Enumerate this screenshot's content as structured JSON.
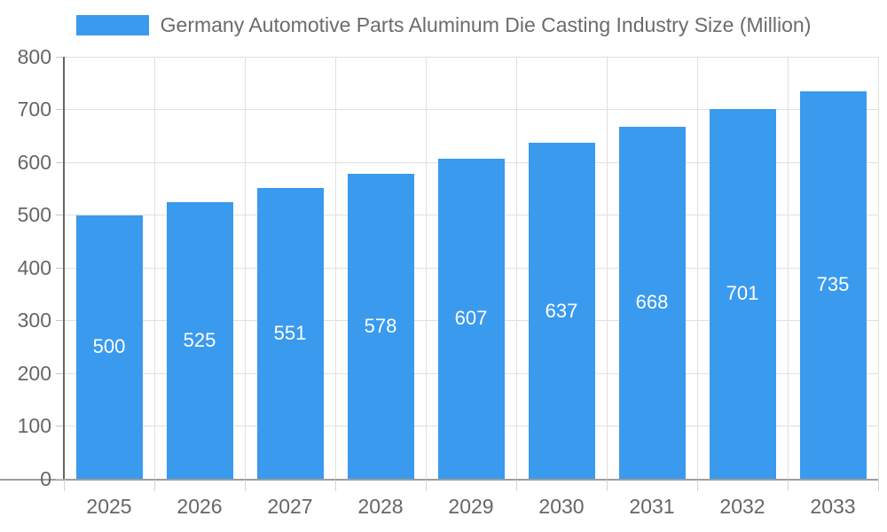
{
  "chart_data": {
    "type": "bar",
    "title": "Germany Automotive Parts Aluminum Die Casting Industry Size (Million)",
    "categories": [
      "2025",
      "2026",
      "2027",
      "2028",
      "2029",
      "2030",
      "2031",
      "2032",
      "2033"
    ],
    "values": [
      500,
      525,
      551,
      578,
      607,
      637,
      668,
      701,
      735
    ],
    "xlabel": "",
    "ylabel": "",
    "ylim": [
      0,
      800
    ],
    "ytick_step": 100,
    "ytick_labels": [
      "0",
      "100",
      "200",
      "300",
      "400",
      "500",
      "600",
      "700",
      "800"
    ],
    "grid": true,
    "legend_position": "top-center",
    "value_labels": "inside-center",
    "colors": {
      "bar": "#3a9aee",
      "bar_label_text": "#ffffff",
      "axis_text": "#666666",
      "legend_text": "#6b6b6b",
      "gridline": "#e0e0e0",
      "y_axis_line": "#666666",
      "x_axis_line": "#9e9e9e",
      "background": "#ffffff"
    }
  },
  "legend": {
    "label": "Germany Automotive Parts Aluminum Die Casting Industry Size (Million)"
  }
}
